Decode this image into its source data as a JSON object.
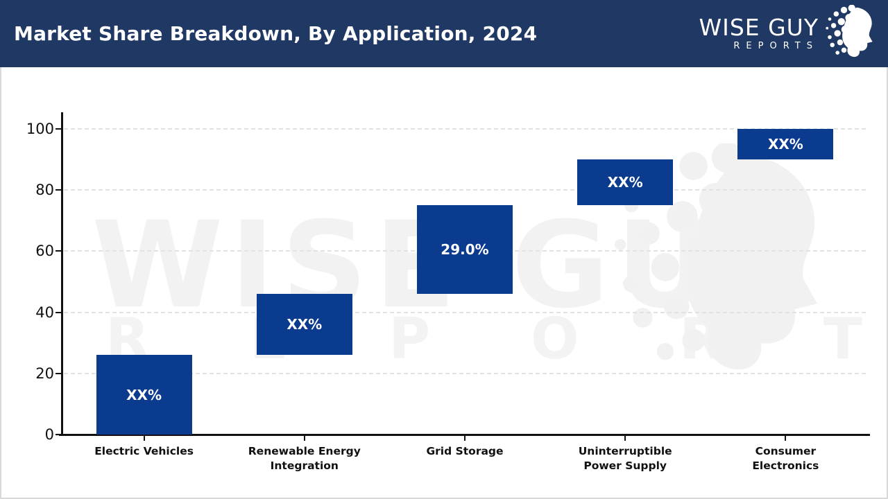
{
  "header": {
    "title": "Market Share Breakdown, By Application, 2024",
    "bg_color": "#1F3864",
    "logo": {
      "brand": "WISE GUY",
      "sub": "REPORTS"
    }
  },
  "watermark": {
    "brand": "WISE GUY",
    "sub": "R E P O R T S"
  },
  "chart_data": {
    "type": "bar",
    "variant": "waterfall",
    "title": "Market Share Breakdown, By Application, 2024",
    "categories": [
      "Electric Vehicles",
      "Renewable Energy\nIntegration",
      "Grid Storage",
      "Uninterruptible\nPower Supply",
      "Consumer\nElectronics"
    ],
    "series": [
      {
        "name": "Market Share (%)",
        "values": [
          26,
          20,
          29,
          15,
          10
        ]
      }
    ],
    "segments": [
      {
        "category": "Electric Vehicles",
        "start": 0,
        "end": 26,
        "value": 26,
        "label": "XX%"
      },
      {
        "category": "Renewable Energy\nIntegration",
        "start": 26,
        "end": 46,
        "value": 20,
        "label": "XX%"
      },
      {
        "category": "Grid Storage",
        "start": 46,
        "end": 75,
        "value": 29,
        "label": "29.0%"
      },
      {
        "category": "Uninterruptible\nPower Supply",
        "start": 75,
        "end": 90,
        "value": 15,
        "label": "XX%"
      },
      {
        "category": "Consumer\nElectronics",
        "start": 90,
        "end": 100,
        "value": 10,
        "label": "XX%"
      }
    ],
    "xlabel": "",
    "ylabel": "",
    "yticks": [
      0,
      20,
      40,
      60,
      80,
      100
    ],
    "ylim": [
      0,
      105
    ],
    "grid": {
      "horizontal": true,
      "style": "dashed",
      "color": "#e2e2e2"
    },
    "legend": "none",
    "bar_color": "#0B3B8F",
    "bar_label_color": "#FFFFFF",
    "axis_color": "#111111"
  }
}
